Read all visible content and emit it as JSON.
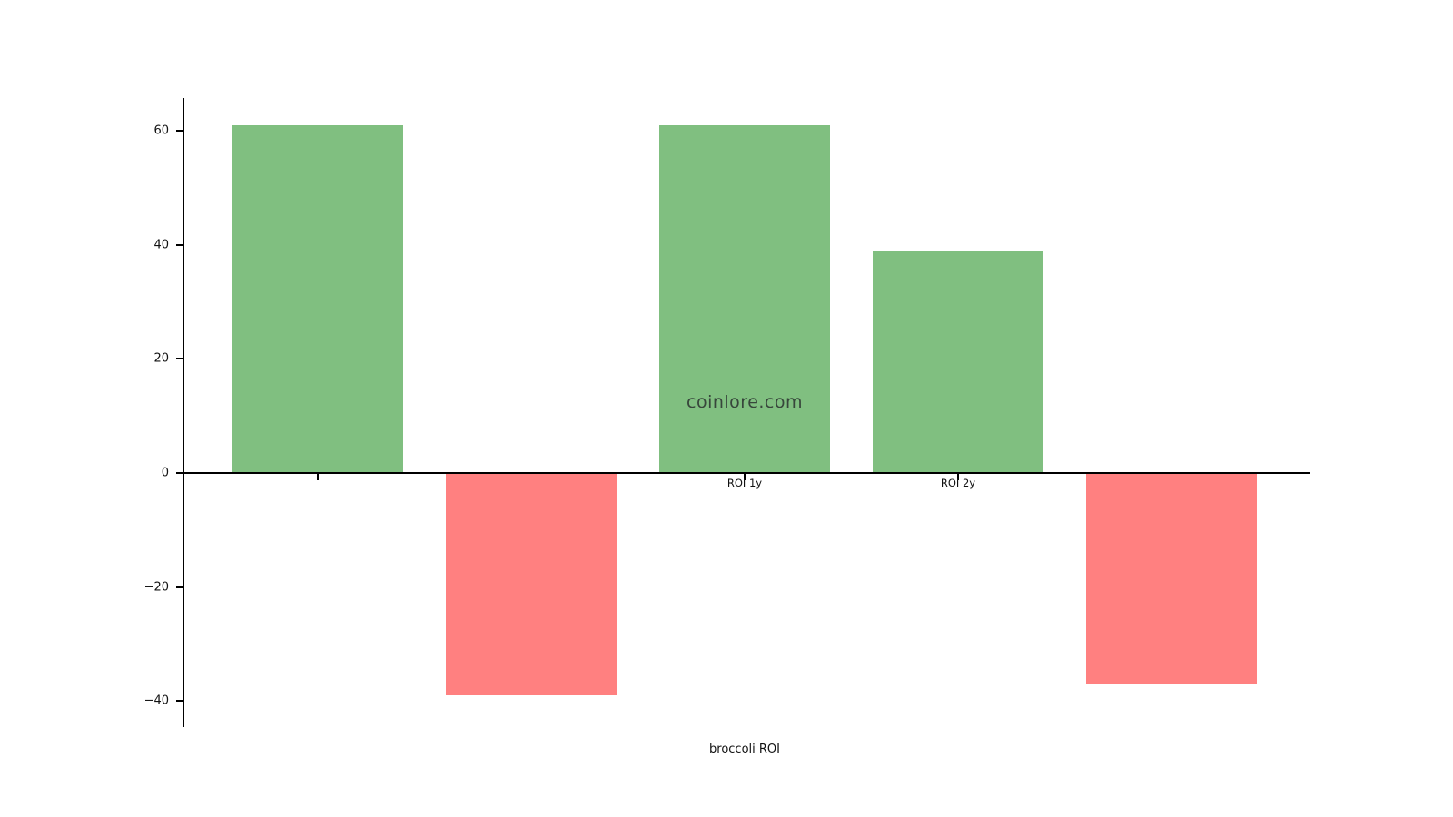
{
  "page": {
    "background": "#ffffff"
  },
  "watermark": {
    "text": "coinlore.com",
    "color_hex": "#37463b"
  },
  "chart_data": {
    "type": "bar",
    "title": "",
    "xlabel": "broccoli ROI",
    "ylabel": "",
    "categories": [
      "",
      "",
      "ROI 1y",
      "ROI 2y",
      ""
    ],
    "values": [
      61,
      -39,
      61,
      39,
      -37
    ],
    "bar_colors": [
      "#80bf80",
      "#ff8080",
      "#80bf80",
      "#80bf80",
      "#ff8080"
    ],
    "positive_color": "#80bf80",
    "negative_color": "#ff8080",
    "yticks": [
      60,
      40,
      20,
      0,
      -20,
      -40
    ],
    "ylim": [
      -45,
      66
    ],
    "xtick_indices": [
      0,
      2,
      3
    ],
    "axis_color": "#000000",
    "grid": false,
    "legend_position": "none"
  }
}
